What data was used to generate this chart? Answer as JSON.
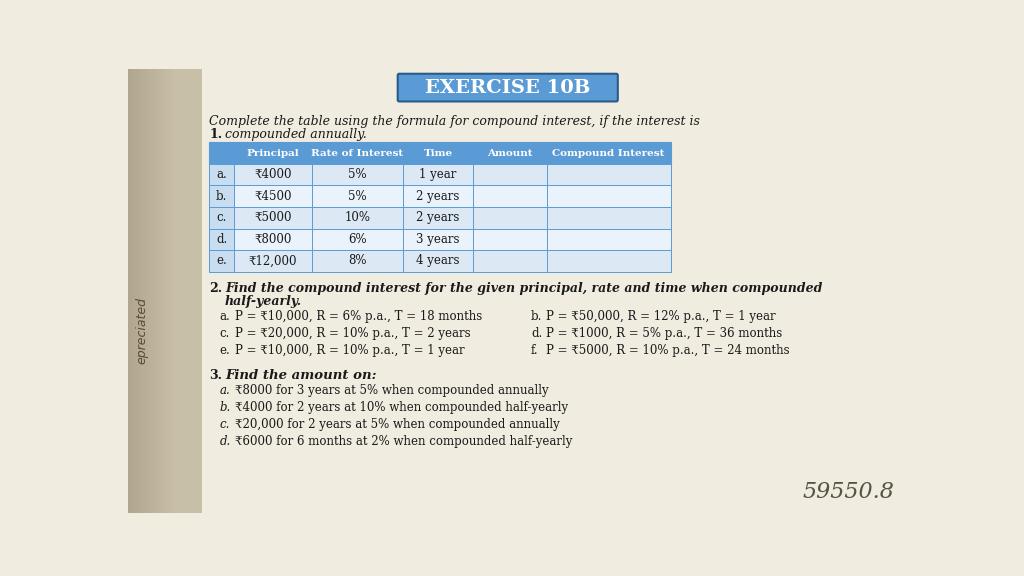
{
  "title": "Exercise 10B",
  "instruction_line1": "Complete the table using the formula for compound interest, if the interest is",
  "instruction_line2": "compounded annually.",
  "q1_label": "1.",
  "table_headers": [
    "",
    "Principal",
    "Rate of Interest",
    "Time",
    "Amount",
    "Compound Interest"
  ],
  "table_rows": [
    [
      "a.",
      "₹4000",
      "5%",
      "1 year",
      "",
      ""
    ],
    [
      "b.",
      "₹4500",
      "5%",
      "2 years",
      "",
      ""
    ],
    [
      "c.",
      "₹5000",
      "10%",
      "2 years",
      "",
      ""
    ],
    [
      "d.",
      "₹8000",
      "6%",
      "3 years",
      "",
      ""
    ],
    [
      "e.",
      "₹12,000",
      "8%",
      "4 years",
      "",
      ""
    ]
  ],
  "q2_label": "2.",
  "q2_line1": "Find the compound interest for the given principal, rate and time when compounded",
  "q2_line2": "half-yearly.",
  "q2_items_left": [
    [
      "a.",
      "P = ₹10,000, R = 6% p.a., T = 18 months"
    ],
    [
      "c.",
      "P = ₹20,000, R = 10% p.a., T = 2 years"
    ],
    [
      "e.",
      "P = ₹10,000, R = 10% p.a., T = 1 year"
    ]
  ],
  "q2_items_right": [
    [
      "b.",
      "P = ₹50,000, R = 12% p.a., T = 1 year"
    ],
    [
      "d.",
      "P = ₹1000, R = 5% p.a., T = 36 months"
    ],
    [
      "f.",
      "P = ₹5000, R = 10% p.a., T = 24 months"
    ]
  ],
  "q3_label": "3.",
  "q3_heading": "Find the amount on:",
  "q3_items": [
    [
      "a.",
      "₹8000 for 3 years at 5% when compounded annually"
    ],
    [
      "b.",
      "₹4000 for 2 years at 10% when compounded half-yearly"
    ],
    [
      "c.",
      "₹20,000 for 2 years at 5% when compounded annually"
    ],
    [
      "d.",
      "₹6000 for 6 months at 2% when compounded half-yearly"
    ]
  ],
  "page_bg": "#f0ece0",
  "spine_bg": "#c8bfa8",
  "table_header_bg": "#5b9bd5",
  "table_header_fg": "#ffffff",
  "table_row_bg1": "#dce9f5",
  "table_row_bg2": "#eaf3fb",
  "table_row_label_bg": "#c8ddf0",
  "title_box_bg": "#5b9bd5",
  "title_box_fg": "#ffffff",
  "grid_color": "#5b9bd5",
  "text_color": "#1a1a1a"
}
